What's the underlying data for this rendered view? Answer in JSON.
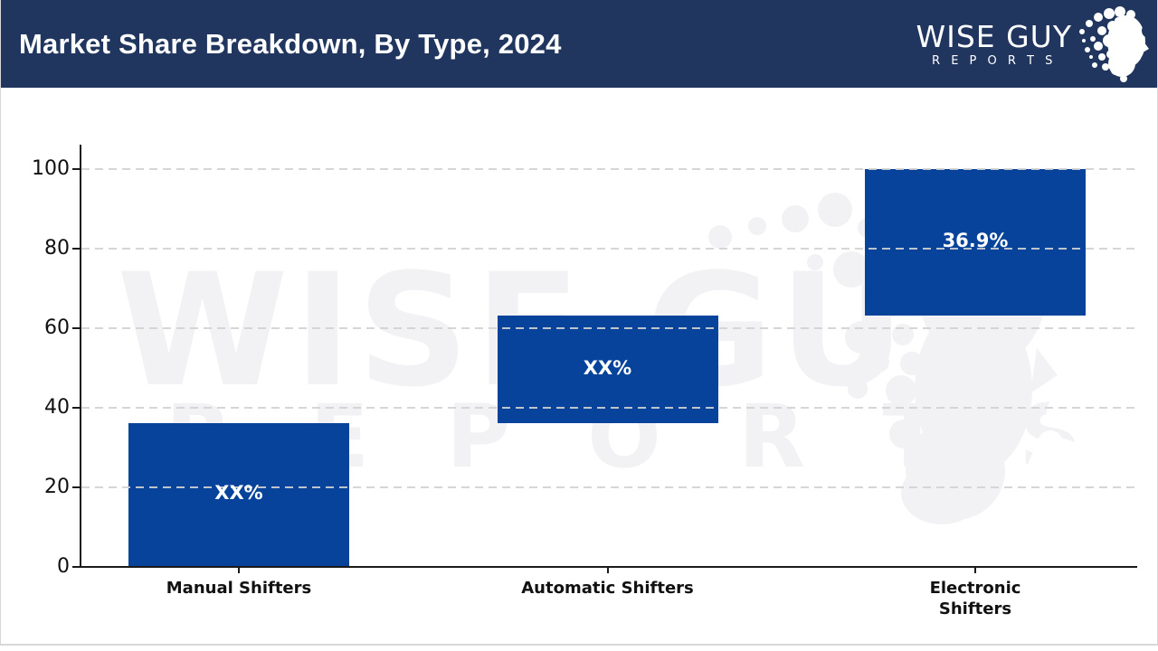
{
  "header": {
    "title": "Market Share Breakdown, By Type, 2024",
    "logo": {
      "name": "WISE GUY",
      "tagline": "R E P O R T S"
    }
  },
  "watermark": {
    "line1": "WISE GUY",
    "line2": "R E P O R T S"
  },
  "chart_data": {
    "type": "bar",
    "subtype": "stacked_percentage_waterfall",
    "title": "Market Share Breakdown, By Type, 2024",
    "categories": [
      "Manual Shifters",
      "Automatic Shifters",
      "Electronic\nShifters"
    ],
    "segments": [
      {
        "category": "Manual Shifters",
        "from": 0,
        "to": 36.2,
        "label": "XX%"
      },
      {
        "category": "Automatic Shifters",
        "from": 36.2,
        "to": 63.1,
        "label": "XX%"
      },
      {
        "category": "Electronic Shifters",
        "from": 63.1,
        "to": 100,
        "label": "36.9%"
      }
    ],
    "xlabel": "",
    "ylabel": "",
    "ylim": [
      0,
      100
    ],
    "yticks": [
      0,
      20,
      40,
      60,
      80,
      100
    ],
    "grid": "horizontal-dashed",
    "legend": "none",
    "colors": {
      "bar": "#07439a",
      "bar_label": "#ffffff",
      "header_bg": "#21365f",
      "axis": "#1a1a1a",
      "gridline": "#d9d9d9",
      "watermark": "#f2f2f5"
    }
  }
}
